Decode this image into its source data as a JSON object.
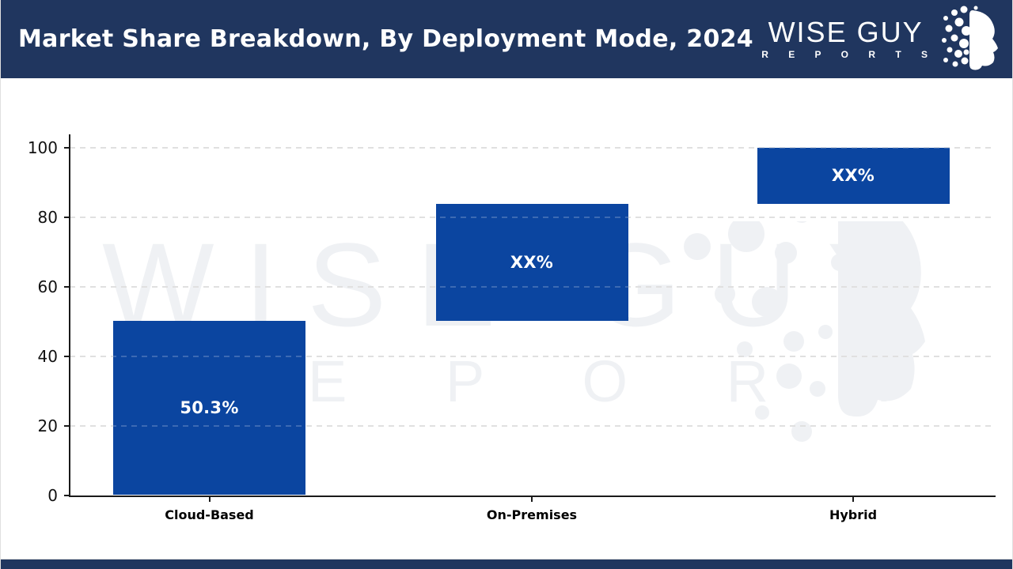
{
  "header": {
    "title": "Market Share Breakdown, By Deployment Mode, 2024",
    "logo": {
      "line1": "WISE GUY",
      "line2": "R E P O R T S",
      "face_icon": "dotted-head-profile"
    }
  },
  "watermark": {
    "line1": "WISE GUY",
    "line2": "R E P O R T S"
  },
  "colors": {
    "header_bg": "#20365f",
    "footer_bg": "#20365f",
    "bar": "#0b45a0",
    "gridline": "#d8d8d8",
    "gridline_over_bar": "rgba(255,255,255,0.2)",
    "axis": "#1a1a1a",
    "bar_label": "#ffffff",
    "tick_label": "#111111",
    "watermark": "#eff1f4"
  },
  "chart_data": {
    "type": "bar",
    "variant": "waterfall (floating stacked segments)",
    "title": "Market Share Breakdown, By Deployment Mode, 2024",
    "categories": [
      "Cloud-Based",
      "On-Premises",
      "Hybrid"
    ],
    "segments": [
      {
        "category": "Cloud-Based",
        "start": 0,
        "end": 50.3,
        "label": "50.3%"
      },
      {
        "category": "On-Premises",
        "start": 50.3,
        "end": 84,
        "label": "XX%"
      },
      {
        "category": "Hybrid",
        "start": 84,
        "end": 100,
        "label": "XX%"
      }
    ],
    "xlabel": "",
    "ylabel": "",
    "yticks": [
      0,
      20,
      40,
      60,
      80,
      100
    ],
    "ylim": [
      0,
      104
    ],
    "grid": "horizontal dashed",
    "legend": null
  }
}
